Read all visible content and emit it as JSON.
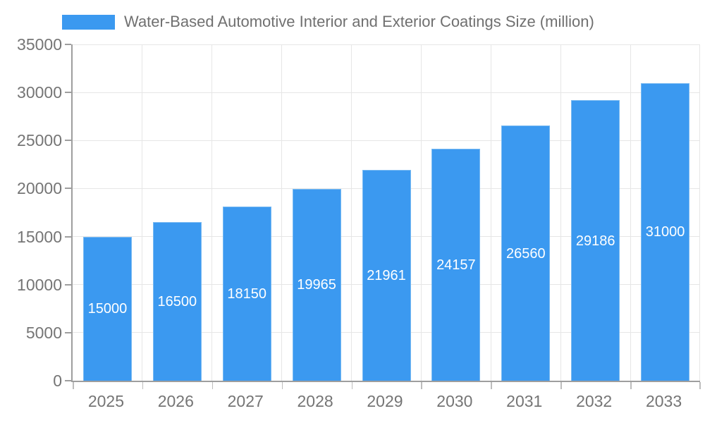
{
  "chart_data": {
    "type": "bar",
    "title": "Water-Based Automotive Interior and Exterior Coatings Size (million)",
    "categories": [
      "2025",
      "2026",
      "2027",
      "2028",
      "2029",
      "2030",
      "2031",
      "2032",
      "2033"
    ],
    "values": [
      15000,
      16500,
      18150,
      19965,
      21961,
      24157,
      26560,
      29186,
      31000
    ],
    "series": [
      {
        "name": "Water-Based Automotive Interior and Exterior Coatings Size (million)",
        "values": [
          15000,
          16500,
          18150,
          19965,
          21961,
          24157,
          26560,
          29186,
          31000
        ]
      }
    ],
    "xlabel": "",
    "ylabel": "",
    "ylim": [
      0,
      35000
    ],
    "y_ticks": [
      0,
      5000,
      10000,
      15000,
      20000,
      25000,
      30000,
      35000
    ],
    "grid": true,
    "legend_position": "top-left",
    "bar_labels_inside": true,
    "colors": {
      "bar": "#3B99F0",
      "bar_border": "#79BAF2",
      "bar_label": "#FFFFFF",
      "grid": "#E6E6E6",
      "axis_line": "#9E9E9E",
      "axis_text": "#757575",
      "legend_text": "#707070"
    }
  }
}
